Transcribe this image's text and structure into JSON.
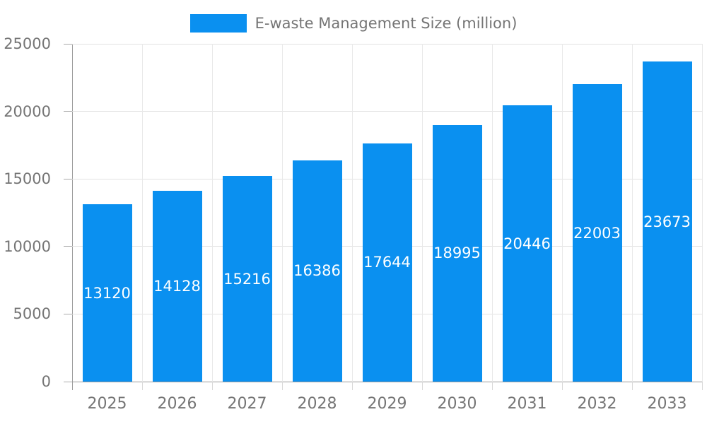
{
  "legend": {
    "label": "E-waste Management Size (million)",
    "swatch_color": "#0a90f0",
    "text_color": "#757575"
  },
  "chart_data": {
    "type": "bar",
    "title": "E-waste Management Size (million)",
    "series_name": "E-waste Management Size (million)",
    "categories": [
      "2025",
      "2026",
      "2027",
      "2028",
      "2029",
      "2030",
      "2031",
      "2032",
      "2033"
    ],
    "values": [
      13120,
      14128,
      15216,
      16386,
      17644,
      18995,
      20446,
      22003,
      23673
    ],
    "value_labels": [
      "13120",
      "14128",
      "15216",
      "16386",
      "17644",
      "18995",
      "20446",
      "22003",
      "23673"
    ],
    "xlabel": "",
    "ylabel": "",
    "ylim": [
      0,
      25000
    ],
    "yticks": [
      0,
      5000,
      10000,
      15000,
      20000,
      25000
    ],
    "ytick_labels": [
      "0",
      "5000",
      "10000",
      "15000",
      "20000",
      "25000"
    ],
    "grid": true,
    "legend_position": "top-center",
    "bar_color": "#0a90f0",
    "bar_label_color": "#ffffff",
    "axis_label_color": "#757575",
    "axis_line_color": "#9b9b9b",
    "grid_color_horizontal": "#e2e2e2",
    "grid_color_vertical": "#e9e9e9",
    "background_color": "#ffffff"
  }
}
